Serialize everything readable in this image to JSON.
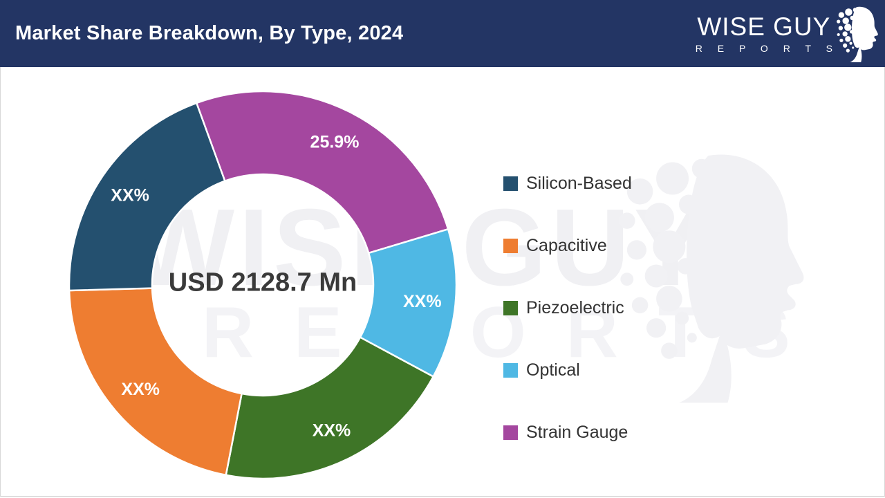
{
  "header": {
    "title": "Market Share Breakdown, By Type, 2024",
    "logo": {
      "line1": "WISE GUY",
      "line2": "R E P O R T S"
    }
  },
  "watermark": {
    "line1": "WISE GUY",
    "line2": "REPORTS"
  },
  "chart": {
    "center_value": "USD 2128.7 Mn"
  },
  "chart_data": {
    "type": "pie",
    "subtype": "donut",
    "title": "Market Share Breakdown, By Type, 2024",
    "center_label": "USD 2128.7 Mn",
    "units": "percent of market share",
    "legend_position": "right",
    "start_angle_deg_cw_from_top": -20,
    "note": "Only the Strain Gauge slice shows a numeric value; other slices are masked as XX%. value_pct values for masked slices are estimated from arc angles.",
    "segments": [
      {
        "name": "Silicon-Based",
        "color": "#24506F",
        "value_pct": 19.9,
        "display_label": "XX%",
        "value_shown": false
      },
      {
        "name": "Capacitive",
        "color": "#EE7D31",
        "value_pct": 21.5,
        "display_label": "XX%",
        "value_shown": false
      },
      {
        "name": "Piezoelectric",
        "color": "#3E7527",
        "value_pct": 20.2,
        "display_label": "XX%",
        "value_shown": false
      },
      {
        "name": "Optical",
        "color": "#4FB8E4",
        "value_pct": 12.5,
        "display_label": "XX%",
        "value_shown": false
      },
      {
        "name": "Strain Gauge",
        "color": "#A4479F",
        "value_pct": 25.9,
        "display_label": "25.9%",
        "value_shown": true
      }
    ]
  },
  "colors": {
    "header_bg": "#233564",
    "center_text": "#3a3a3a",
    "legend_text": "#333333",
    "watermark_gray": "#f0f0f3"
  }
}
